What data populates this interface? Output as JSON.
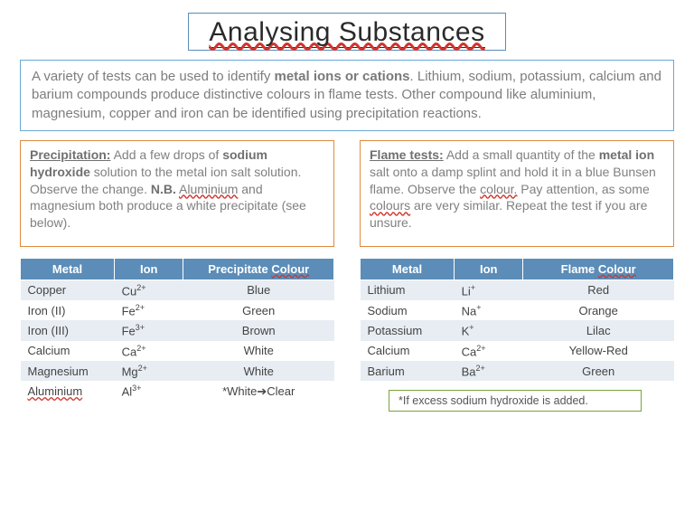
{
  "title": "Analysing Substances",
  "intro": {
    "text_a": "A variety of tests can be used to identify ",
    "bold_a": "metal ions or cations",
    "text_b": ". Lithium, sodium, potassium, calcium and barium compounds produce distinctive colours in flame tests. Other compound like aluminium, magnesium, copper and iron can be identified using precipitation reactions."
  },
  "precip_box": {
    "head": "Precipitation:",
    "t1": " Add a few drops of ",
    "b1": "sodium hydroxide",
    "t2": " solution to the metal ion salt solution.  Observe the change. ",
    "b2": "N.B.",
    "t3": " ",
    "u1": "Aluminium",
    "t4": " and magnesium both produce a white precipitate (see below)."
  },
  "flame_box": {
    "head": "Flame tests:",
    "t1": " Add a small quantity of the ",
    "b1": "metal ion",
    "t2": " salt onto a damp splint and hold it in a blue Bunsen flame. Observe the ",
    "u1": "colour.",
    "t3": " Pay attention, as some ",
    "u2": "colours",
    "t4": " are very similar.  Repeat the test if you are unsure."
  },
  "precip_table": {
    "columns": [
      "Metal",
      "Ion",
      "Precipitate Colour"
    ],
    "col_colour_word": "Colour",
    "rows": [
      {
        "metal": "Copper",
        "ion_base": "Cu",
        "ion_sup": "2+",
        "colour": "Blue"
      },
      {
        "metal": "Iron (II)",
        "ion_base": "Fe",
        "ion_sup": "2+",
        "colour": "Green"
      },
      {
        "metal": "Iron (III)",
        "ion_base": "Fe",
        "ion_sup": "3+",
        "colour": "Brown"
      },
      {
        "metal": "Calcium",
        "ion_base": "Ca",
        "ion_sup": "2+",
        "colour": "White"
      },
      {
        "metal": "Magnesium",
        "ion_base": "Mg",
        "ion_sup": "2+",
        "colour": "White"
      },
      {
        "metal": "Aluminium",
        "metal_spell": true,
        "ion_base": "Al",
        "ion_sup": "3+",
        "colour": "*White➔Clear",
        "bold": true
      }
    ]
  },
  "flame_table": {
    "columns": [
      "Metal",
      "Ion",
      "Flame Colour"
    ],
    "col_colour_word": "Colour",
    "rows": [
      {
        "metal": "Lithium",
        "ion_base": "Li",
        "ion_sup": "+",
        "colour": "Red"
      },
      {
        "metal": "Sodium",
        "ion_base": "Na",
        "ion_sup": "+",
        "colour": "Orange"
      },
      {
        "metal": "Potassium",
        "ion_base": "K",
        "ion_sup": "+",
        "colour": "Lilac"
      },
      {
        "metal": "Calcium",
        "ion_base": "Ca",
        "ion_sup": "2+",
        "colour": "Yellow-Red"
      },
      {
        "metal": "Barium",
        "ion_base": "Ba",
        "ion_sup": "2+",
        "colour": "Green"
      }
    ]
  },
  "footnote": {
    "star": "*",
    "text": "If excess sodium hydroxide is added."
  },
  "styles": {
    "title_border": "#5b8db8",
    "intro_border": "#6aa7d6",
    "note_border": "#e08a3e",
    "th_bg": "#5b8db8",
    "row_alt_bg": "#e7edf3",
    "footnote_border": "#7aa23c",
    "body_text": "#7d7d7d",
    "spell_red": "#d0342c"
  }
}
